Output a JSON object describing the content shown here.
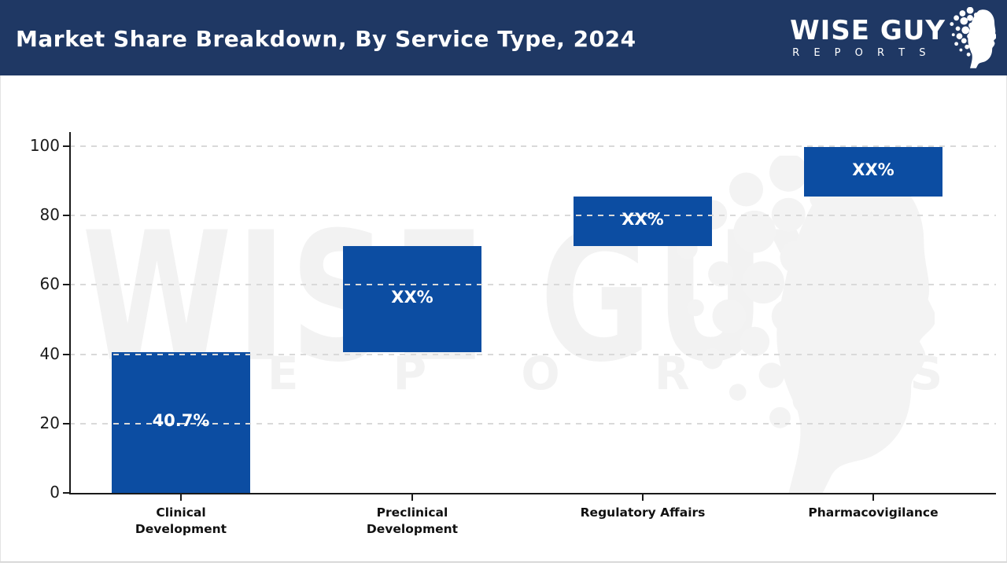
{
  "header": {
    "title": "Market Share Breakdown, By Service Type, 2024",
    "logo": {
      "line1": "WISE GUY",
      "line2": "R E P O R T S"
    }
  },
  "watermark": {
    "line1": "WISE GUY",
    "line2": "R E P O R T S"
  },
  "chart_data": {
    "type": "bar",
    "subtype": "waterfall",
    "title": "Market Share Breakdown, By Service Type, 2024",
    "xlabel": "",
    "ylabel": "",
    "ylim": [
      0,
      100
    ],
    "yticks": [
      0,
      20,
      40,
      60,
      80,
      100
    ],
    "grid": true,
    "grid_style": "dashed",
    "legend": "none",
    "bar_color": "#0C4DA2",
    "label_color": "#ffffff",
    "categories": [
      "Clinical\nDevelopment",
      "Preclinical\nDevelopment",
      "Regulatory Affairs",
      "Pharmacovigilance"
    ],
    "segments": [
      {
        "category": "Clinical Development",
        "start": 0,
        "end": 40.7,
        "label": "40.7%"
      },
      {
        "category": "Preclinical Development",
        "start": 40.7,
        "end": 71.2,
        "label": "XX%"
      },
      {
        "category": "Regulatory Affairs",
        "start": 71.2,
        "end": 85.5,
        "label": "XX%"
      },
      {
        "category": "Pharmacovigilance",
        "start": 85.5,
        "end": 99.8,
        "label": "XX%"
      }
    ]
  },
  "colors": {
    "header_bg": "#1F3864",
    "bar": "#0C4DA2",
    "grid": "#d9d9d9",
    "watermark": "#f2f2f2"
  }
}
